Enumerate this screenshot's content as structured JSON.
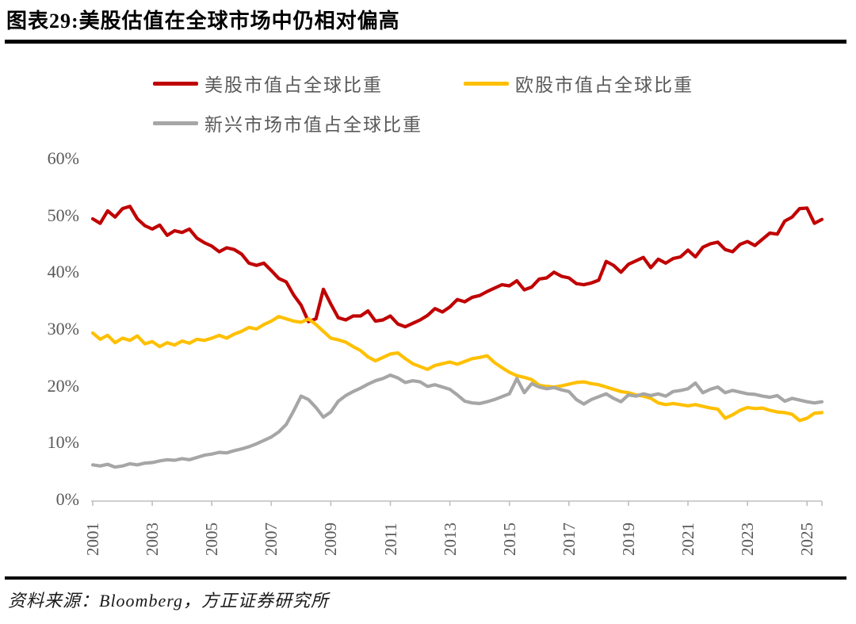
{
  "header": {
    "title": "图表29:美股估值在全球市场中仍相对偏高"
  },
  "footer": {
    "source": "资料来源：Bloomberg，方正证券研究所"
  },
  "colors": {
    "us_line": "#C00000",
    "europe_line": "#FFC000",
    "em_line": "#A6A6A6",
    "axis_line": "#BFBFBF",
    "axis_text": "#595959",
    "rule": "#000000"
  },
  "legend": {
    "items": [
      {
        "label": "美股市值占全球比重",
        "color": "#C00000"
      },
      {
        "label": "欧股市值占全球比重",
        "color": "#FFC000"
      },
      {
        "label": "新兴市场市值占全球比重",
        "color": "#A6A6A6"
      }
    ]
  },
  "chart_data": {
    "type": "line",
    "title": "图表29:美股估值在全球市场中仍相对偏高",
    "xlabel": "",
    "ylabel": "",
    "grid": false,
    "legend_position": "top",
    "xlim": [
      2001,
      2025.5
    ],
    "ylim": [
      0,
      60
    ],
    "x_start": 2001.0,
    "x_step": 0.25,
    "x_unit": "year",
    "y_unit": "percent",
    "x_ticks": [
      2001,
      2003,
      2005,
      2007,
      2009,
      2011,
      2013,
      2015,
      2017,
      2019,
      2021,
      2023,
      2025
    ],
    "y_ticks": [
      {
        "label": "0%",
        "value": 0
      },
      {
        "label": "10%",
        "value": 10
      },
      {
        "label": "20%",
        "value": 20
      },
      {
        "label": "30%",
        "value": 30
      },
      {
        "label": "40%",
        "value": 40
      },
      {
        "label": "50%",
        "value": 50
      },
      {
        "label": "60%",
        "value": 60
      }
    ],
    "series": [
      {
        "id": "us",
        "name": "美股市值占全球比重",
        "color": "#C00000",
        "values": [
          49.4,
          48.6,
          50.8,
          49.7,
          51.2,
          51.6,
          49.4,
          48.2,
          47.6,
          48.3,
          46.5,
          47.3,
          47.0,
          47.6,
          46.0,
          45.2,
          44.6,
          43.6,
          44.3,
          44.0,
          43.2,
          41.6,
          41.2,
          41.6,
          40.3,
          38.9,
          38.3,
          36.0,
          34.2,
          31.3,
          31.8,
          37.0,
          34.4,
          32.0,
          31.6,
          32.3,
          32.3,
          33.2,
          31.4,
          31.6,
          32.3,
          30.9,
          30.4,
          31.0,
          31.6,
          32.4,
          33.6,
          33.0,
          33.9,
          35.2,
          34.8,
          35.6,
          35.9,
          36.6,
          37.2,
          37.8,
          37.6,
          38.5,
          36.9,
          37.4,
          38.8,
          39.0,
          40.0,
          39.3,
          39.0,
          38.0,
          37.8,
          38.1,
          38.6,
          41.9,
          41.2,
          40.0,
          41.4,
          42.0,
          42.6,
          40.8,
          42.3,
          41.6,
          42.4,
          42.7,
          43.9,
          42.7,
          44.4,
          45.0,
          45.3,
          44.0,
          43.6,
          44.9,
          45.4,
          44.7,
          45.8,
          46.9,
          46.7,
          49.0,
          49.7,
          51.2,
          51.3,
          48.6,
          49.3
        ]
      },
      {
        "id": "europe",
        "name": "欧股市值占全球比重",
        "color": "#FFC000",
        "values": [
          29.3,
          28.2,
          28.9,
          27.6,
          28.4,
          28.0,
          28.8,
          27.4,
          27.8,
          26.9,
          27.6,
          27.2,
          27.9,
          27.5,
          28.2,
          28.0,
          28.4,
          28.9,
          28.4,
          29.1,
          29.6,
          30.3,
          30.0,
          30.8,
          31.4,
          32.2,
          31.8,
          31.4,
          31.2,
          31.8,
          30.8,
          29.6,
          28.4,
          28.1,
          27.7,
          26.9,
          26.2,
          25.1,
          24.4,
          25.0,
          25.6,
          25.8,
          24.8,
          23.9,
          23.4,
          22.9,
          23.6,
          23.9,
          24.2,
          23.8,
          24.3,
          24.8,
          25.0,
          25.3,
          24.1,
          23.2,
          22.4,
          21.8,
          21.5,
          21.1,
          20.1,
          19.9,
          19.8,
          20.0,
          20.3,
          20.6,
          20.7,
          20.4,
          20.2,
          19.8,
          19.4,
          19.0,
          18.8,
          18.4,
          18.2,
          17.8,
          17.0,
          16.7,
          16.9,
          16.7,
          16.5,
          16.7,
          16.4,
          16.1,
          15.9,
          14.3,
          14.9,
          15.7,
          16.2,
          16.0,
          16.1,
          15.7,
          15.4,
          15.3,
          15.0,
          13.9,
          14.3,
          15.2,
          15.3
        ]
      },
      {
        "id": "em",
        "name": "新兴市场市值占全球比重",
        "color": "#A6A6A6",
        "values": [
          6.1,
          5.9,
          6.2,
          5.7,
          5.9,
          6.3,
          6.1,
          6.4,
          6.5,
          6.8,
          7.0,
          6.9,
          7.2,
          7.0,
          7.4,
          7.8,
          8.0,
          8.3,
          8.2,
          8.6,
          8.9,
          9.3,
          9.8,
          10.4,
          11.0,
          11.9,
          13.2,
          15.6,
          18.2,
          17.6,
          16.2,
          14.5,
          15.4,
          17.3,
          18.3,
          19.0,
          19.6,
          20.3,
          20.9,
          21.3,
          21.9,
          21.4,
          20.6,
          20.9,
          20.7,
          19.9,
          20.2,
          19.8,
          19.4,
          18.4,
          17.3,
          17.0,
          16.9,
          17.2,
          17.6,
          18.1,
          18.6,
          21.3,
          18.8,
          20.4,
          19.8,
          19.5,
          19.7,
          19.3,
          19.0,
          17.6,
          16.8,
          17.6,
          18.1,
          18.6,
          17.8,
          17.2,
          18.4,
          18.2,
          18.6,
          18.3,
          18.6,
          18.2,
          19.0,
          19.2,
          19.5,
          20.5,
          18.8,
          19.4,
          19.8,
          18.8,
          19.2,
          18.9,
          18.6,
          18.5,
          18.2,
          18.0,
          18.3,
          17.3,
          17.8,
          17.5,
          17.2,
          17.0,
          17.2
        ]
      }
    ]
  }
}
